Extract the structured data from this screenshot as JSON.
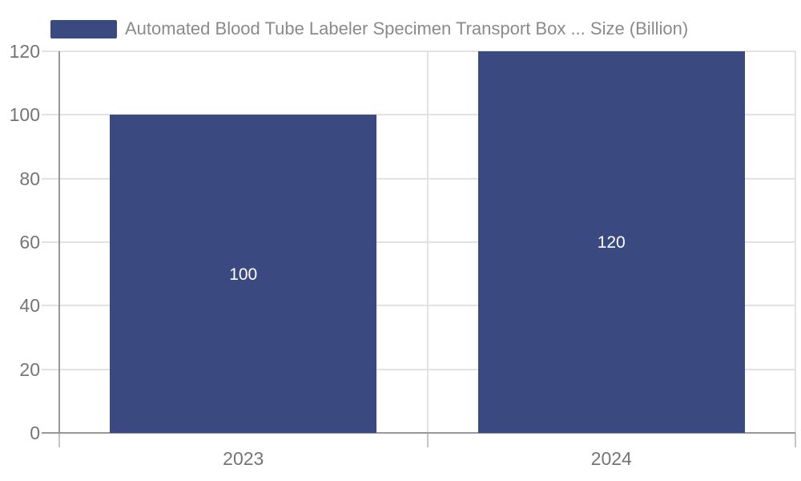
{
  "chart_data": {
    "type": "bar",
    "title": "",
    "categories": [
      "2023",
      "2024"
    ],
    "series": [
      {
        "name": "Automated Blood Tube Labeler Specimen Transport Box ... Size (Billion)",
        "values": [
          100,
          120
        ]
      }
    ],
    "bar_value_labels": [
      "100",
      "120"
    ],
    "xlabel": "",
    "ylabel": "",
    "ylim": [
      0,
      120
    ],
    "ytick_step": 20,
    "yticks": [
      "0",
      "20",
      "40",
      "60",
      "80",
      "100",
      "120"
    ],
    "grid": true,
    "legend_position": "top-left",
    "colors": {
      "bar": "#3A4A80",
      "gridline": "#E2E2E2",
      "axis_line": "#979797",
      "tick": "#C4C4C4",
      "axis_label": "#757575",
      "legend_text": "#8A8A8A",
      "bar_value_label": "#FFFFFF",
      "background": "#FFFFFF"
    }
  }
}
